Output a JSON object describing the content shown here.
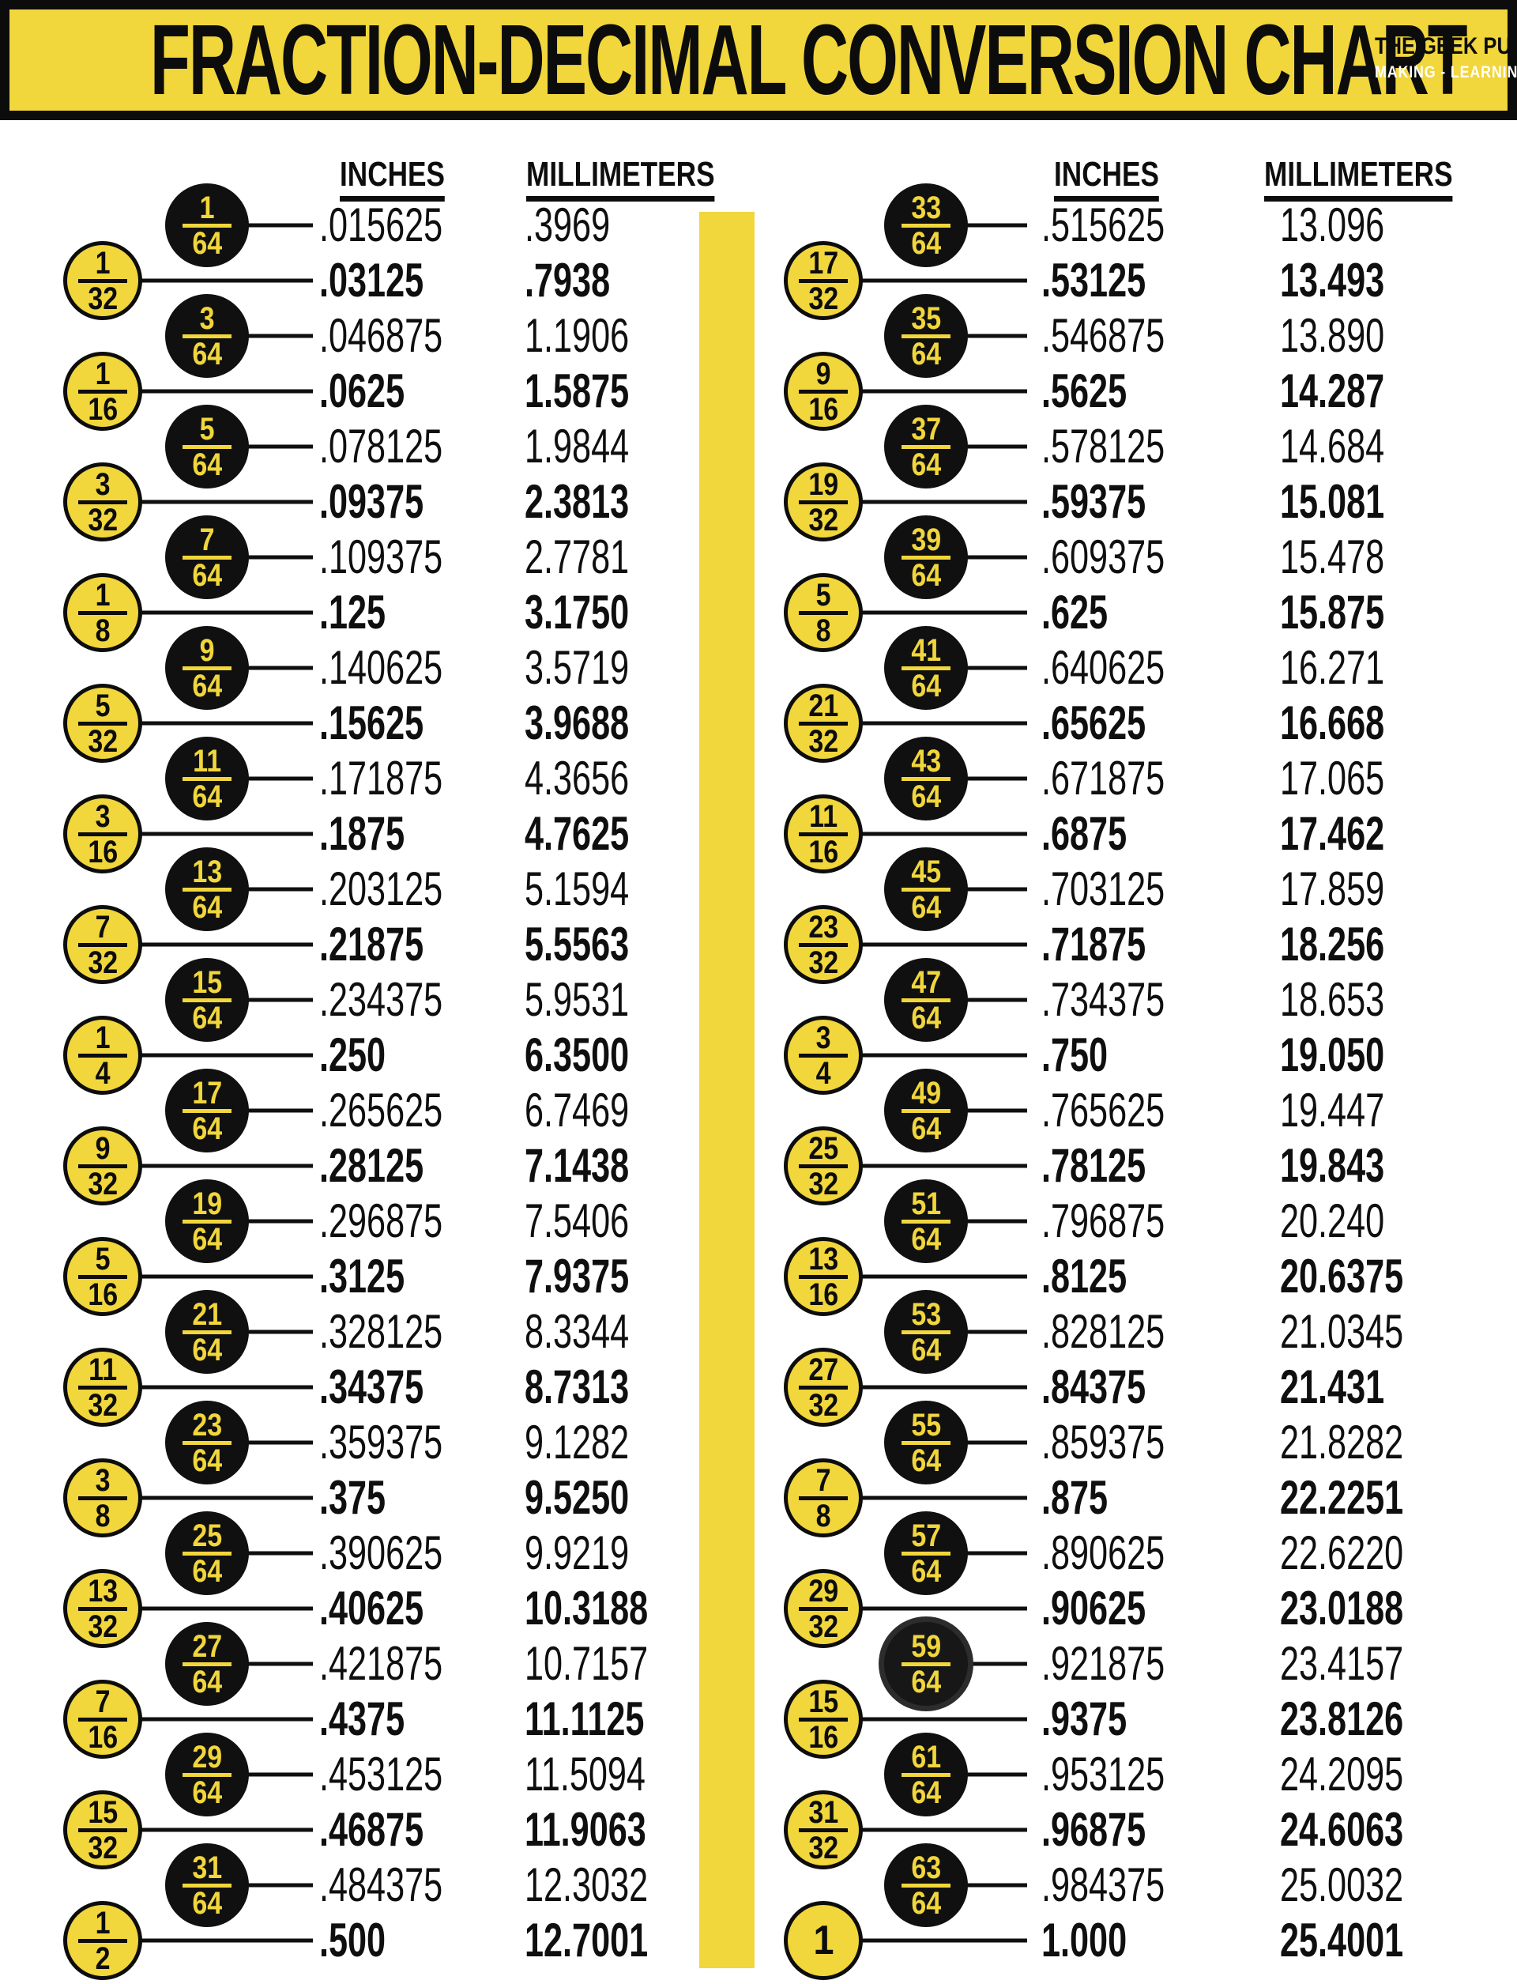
{
  "header": {
    "title": "FRACTION-DECIMAL CONVERSION CHART",
    "brand": "THE GEEK PUB",
    "brand_tagline": "MAKING - LEARNING"
  },
  "columns": {
    "inches_label": "INCHES",
    "millimeters_label": "MILLIMETERS"
  },
  "colors": {
    "yellow": "#F1D63C",
    "black": "#0c0c0c",
    "white": "#ffffff"
  },
  "chart_data": {
    "type": "table",
    "title": "FRACTION-DECIMAL CONVERSION CHART",
    "columns": [
      "fraction",
      "inches",
      "millimeters"
    ],
    "layout_hint": "two columns of 32 rows; 64ths in black badges, coarser fractions in yellow badges with bold values",
    "rows": [
      {
        "num": "1",
        "den": "64",
        "style": "dark",
        "inches": ".015625",
        "mm": ".3969"
      },
      {
        "num": "1",
        "den": "32",
        "style": "light",
        "inches": ".03125",
        "mm": ".7938"
      },
      {
        "num": "3",
        "den": "64",
        "style": "dark",
        "inches": ".046875",
        "mm": "1.1906"
      },
      {
        "num": "1",
        "den": "16",
        "style": "light",
        "inches": ".0625",
        "mm": "1.5875"
      },
      {
        "num": "5",
        "den": "64",
        "style": "dark",
        "inches": ".078125",
        "mm": "1.9844"
      },
      {
        "num": "3",
        "den": "32",
        "style": "light",
        "inches": ".09375",
        "mm": "2.3813"
      },
      {
        "num": "7",
        "den": "64",
        "style": "dark",
        "inches": ".109375",
        "mm": "2.7781"
      },
      {
        "num": "1",
        "den": "8",
        "style": "light",
        "inches": ".125",
        "mm": "3.1750"
      },
      {
        "num": "9",
        "den": "64",
        "style": "dark",
        "inches": ".140625",
        "mm": "3.5719"
      },
      {
        "num": "5",
        "den": "32",
        "style": "light",
        "inches": ".15625",
        "mm": "3.9688"
      },
      {
        "num": "11",
        "den": "64",
        "style": "dark",
        "inches": ".171875",
        "mm": "4.3656"
      },
      {
        "num": "3",
        "den": "16",
        "style": "light",
        "inches": ".1875",
        "mm": "4.7625"
      },
      {
        "num": "13",
        "den": "64",
        "style": "dark",
        "inches": ".203125",
        "mm": "5.1594"
      },
      {
        "num": "7",
        "den": "32",
        "style": "light",
        "inches": ".21875",
        "mm": "5.5563"
      },
      {
        "num": "15",
        "den": "64",
        "style": "dark",
        "inches": ".234375",
        "mm": "5.9531"
      },
      {
        "num": "1",
        "den": "4",
        "style": "light",
        "inches": ".250",
        "mm": "6.3500"
      },
      {
        "num": "17",
        "den": "64",
        "style": "dark",
        "inches": ".265625",
        "mm": "6.7469"
      },
      {
        "num": "9",
        "den": "32",
        "style": "light",
        "inches": ".28125",
        "mm": "7.1438"
      },
      {
        "num": "19",
        "den": "64",
        "style": "dark",
        "inches": ".296875",
        "mm": "7.5406"
      },
      {
        "num": "5",
        "den": "16",
        "style": "light",
        "inches": ".3125",
        "mm": "7.9375"
      },
      {
        "num": "21",
        "den": "64",
        "style": "dark",
        "inches": ".328125",
        "mm": "8.3344"
      },
      {
        "num": "11",
        "den": "32",
        "style": "light",
        "inches": ".34375",
        "mm": "8.7313"
      },
      {
        "num": "23",
        "den": "64",
        "style": "dark",
        "inches": ".359375",
        "mm": "9.1282"
      },
      {
        "num": "3",
        "den": "8",
        "style": "light",
        "inches": ".375",
        "mm": "9.5250"
      },
      {
        "num": "25",
        "den": "64",
        "style": "dark",
        "inches": ".390625",
        "mm": "9.9219"
      },
      {
        "num": "13",
        "den": "32",
        "style": "light",
        "inches": ".40625",
        "mm": "10.3188"
      },
      {
        "num": "27",
        "den": "64",
        "style": "dark",
        "inches": ".421875",
        "mm": "10.7157"
      },
      {
        "num": "7",
        "den": "16",
        "style": "light",
        "inches": ".4375",
        "mm": "11.1125"
      },
      {
        "num": "29",
        "den": "64",
        "style": "dark",
        "inches": ".453125",
        "mm": "11.5094"
      },
      {
        "num": "15",
        "den": "32",
        "style": "light",
        "inches": ".46875",
        "mm": "11.9063"
      },
      {
        "num": "31",
        "den": "64",
        "style": "dark",
        "inches": ".484375",
        "mm": "12.3032"
      },
      {
        "num": "1",
        "den": "2",
        "style": "light",
        "inches": ".500",
        "mm": "12.7001"
      },
      {
        "num": "33",
        "den": "64",
        "style": "dark",
        "inches": ".515625",
        "mm": "13.096"
      },
      {
        "num": "17",
        "den": "32",
        "style": "light",
        "inches": ".53125",
        "mm": "13.493"
      },
      {
        "num": "35",
        "den": "64",
        "style": "dark",
        "inches": ".546875",
        "mm": "13.890"
      },
      {
        "num": "9",
        "den": "16",
        "style": "light",
        "inches": ".5625",
        "mm": "14.287"
      },
      {
        "num": "37",
        "den": "64",
        "style": "dark",
        "inches": ".578125",
        "mm": "14.684"
      },
      {
        "num": "19",
        "den": "32",
        "style": "light",
        "inches": ".59375",
        "mm": "15.081"
      },
      {
        "num": "39",
        "den": "64",
        "style": "dark",
        "inches": ".609375",
        "mm": "15.478"
      },
      {
        "num": "5",
        "den": "8",
        "style": "light",
        "inches": ".625",
        "mm": "15.875"
      },
      {
        "num": "41",
        "den": "64",
        "style": "dark",
        "inches": ".640625",
        "mm": "16.271"
      },
      {
        "num": "21",
        "den": "32",
        "style": "light",
        "inches": ".65625",
        "mm": "16.668"
      },
      {
        "num": "43",
        "den": "64",
        "style": "dark",
        "inches": ".671875",
        "mm": "17.065"
      },
      {
        "num": "11",
        "den": "16",
        "style": "light",
        "inches": ".6875",
        "mm": "17.462"
      },
      {
        "num": "45",
        "den": "64",
        "style": "dark",
        "inches": ".703125",
        "mm": "17.859"
      },
      {
        "num": "23",
        "den": "32",
        "style": "light",
        "inches": ".71875",
        "mm": "18.256"
      },
      {
        "num": "47",
        "den": "64",
        "style": "dark",
        "inches": ".734375",
        "mm": "18.653"
      },
      {
        "num": "3",
        "den": "4",
        "style": "light",
        "inches": ".750",
        "mm": "19.050"
      },
      {
        "num": "49",
        "den": "64",
        "style": "dark",
        "inches": ".765625",
        "mm": "19.447"
      },
      {
        "num": "25",
        "den": "32",
        "style": "light",
        "inches": ".78125",
        "mm": "19.843"
      },
      {
        "num": "51",
        "den": "64",
        "style": "dark",
        "inches": ".796875",
        "mm": "20.240"
      },
      {
        "num": "13",
        "den": "16",
        "style": "light",
        "inches": ".8125",
        "mm": "20.6375"
      },
      {
        "num": "53",
        "den": "64",
        "style": "dark",
        "inches": ".828125",
        "mm": "21.0345"
      },
      {
        "num": "27",
        "den": "32",
        "style": "light",
        "inches": ".84375",
        "mm": "21.431"
      },
      {
        "num": "55",
        "den": "64",
        "style": "dark",
        "inches": ".859375",
        "mm": "21.8282"
      },
      {
        "num": "7",
        "den": "8",
        "style": "light",
        "inches": ".875",
        "mm": "22.2251"
      },
      {
        "num": "57",
        "den": "64",
        "style": "dark",
        "inches": ".890625",
        "mm": "22.6220"
      },
      {
        "num": "29",
        "den": "32",
        "style": "light",
        "inches": ".90625",
        "mm": "23.0188"
      },
      {
        "num": "59",
        "den": "64",
        "style": "dark",
        "ring": true,
        "inches": ".921875",
        "mm": "23.4157"
      },
      {
        "num": "15",
        "den": "16",
        "style": "light",
        "inches": ".9375",
        "mm": "23.8126"
      },
      {
        "num": "61",
        "den": "64",
        "style": "dark",
        "inches": ".953125",
        "mm": "24.2095"
      },
      {
        "num": "31",
        "den": "32",
        "style": "light",
        "inches": ".96875",
        "mm": "24.6063"
      },
      {
        "num": "63",
        "den": "64",
        "style": "dark",
        "inches": ".984375",
        "mm": "25.0032"
      },
      {
        "num": "1",
        "den": null,
        "style": "light",
        "inches": "1.000",
        "mm": "25.4001"
      }
    ]
  }
}
